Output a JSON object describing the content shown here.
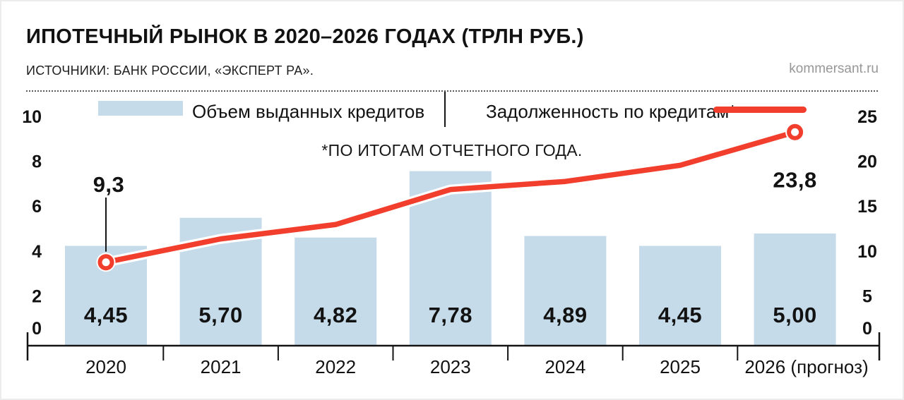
{
  "header": {
    "title": "ИПОТЕЧНЫЙ РЫНОК В 2020–2026 ГОДАХ (ТРЛН РУБ.)",
    "source": "ИСТОЧНИКИ: БАНК РОССИИ, «ЭКСПЕРТ РА».",
    "site": "kommersant.ru"
  },
  "legend": {
    "bars_label": "Объем выданных кредитов",
    "line_label": "Задолженность по кредитам*",
    "footnote": "*ПО ИТОГАМ ОТЧЕТНОГО ГОДА."
  },
  "chart_data": {
    "type": "combo",
    "subtype": "bar series (left axis) + line series (right axis)",
    "title": "ИПОТЕЧНЫЙ РЫНОК В 2020–2026 ГОДАХ (ТРЛН РУБ.)",
    "categories": [
      "2020",
      "2021",
      "2022",
      "2023",
      "2024",
      "2025",
      "2026 (прогноз)"
    ],
    "bar_series": {
      "name": "Объем выданных кредитов",
      "axis": "left",
      "color": "#c6dbe9",
      "values": [
        4.45,
        5.7,
        4.82,
        7.78,
        4.89,
        4.45,
        5.0
      ],
      "labels": [
        "4,45",
        "5,70",
        "4,82",
        "7,78",
        "4,89",
        "4,45",
        "5,00"
      ]
    },
    "line_series": {
      "name": "Задолженность по кредитам*",
      "axis": "right",
      "color": "#f23e2c",
      "values": [
        9.3,
        11.9,
        13.5,
        17.4,
        18.3,
        20.1,
        23.8
      ],
      "first_label": "9,3",
      "last_label": "23,8"
    },
    "left_axis": {
      "ticks": [
        0,
        2,
        4,
        6,
        8,
        10
      ],
      "min": 0,
      "max": 10
    },
    "right_axis": {
      "ticks": [
        0,
        5,
        10,
        15,
        20,
        25
      ],
      "min": 0,
      "max": 25
    },
    "grid": false,
    "legend_position": "top"
  }
}
